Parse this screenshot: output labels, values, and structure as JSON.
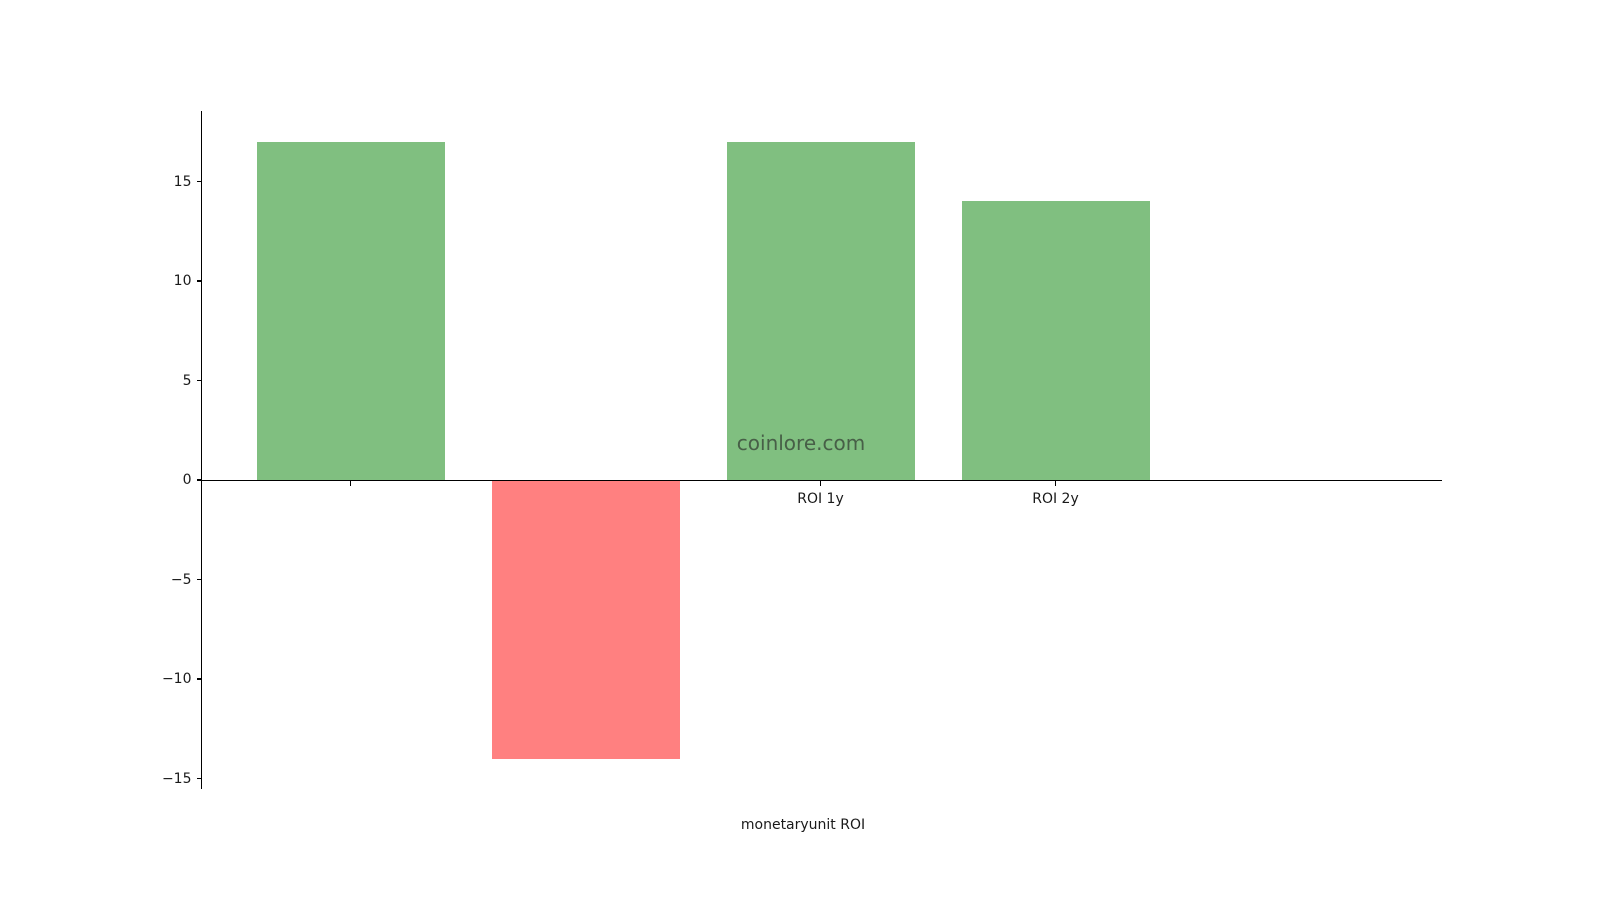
{
  "page": {
    "watermark": "coinlore.com"
  },
  "chart_data": {
    "type": "bar",
    "title": "",
    "xlabel": "monetaryunit ROI",
    "ylabel": "",
    "categories": [
      "",
      "",
      "ROI 1y",
      "ROI 2y"
    ],
    "values": [
      17,
      -14,
      17,
      14
    ],
    "series": [
      {
        "name": "monetaryunit ROI",
        "values": [
          17,
          -14,
          17,
          14
        ]
      }
    ],
    "bar_color_positive": "#80bf80",
    "bar_color_negative": "#ff8080",
    "axis_color": "#000000",
    "tick_label_color": "#1a1a1a",
    "yticks": [
      15,
      10,
      5,
      0,
      -5,
      -10,
      -15
    ],
    "ylim": [
      -15.55,
      18.55
    ],
    "grid": false,
    "legend_position": "none",
    "watermark": "coinlore.com"
  }
}
